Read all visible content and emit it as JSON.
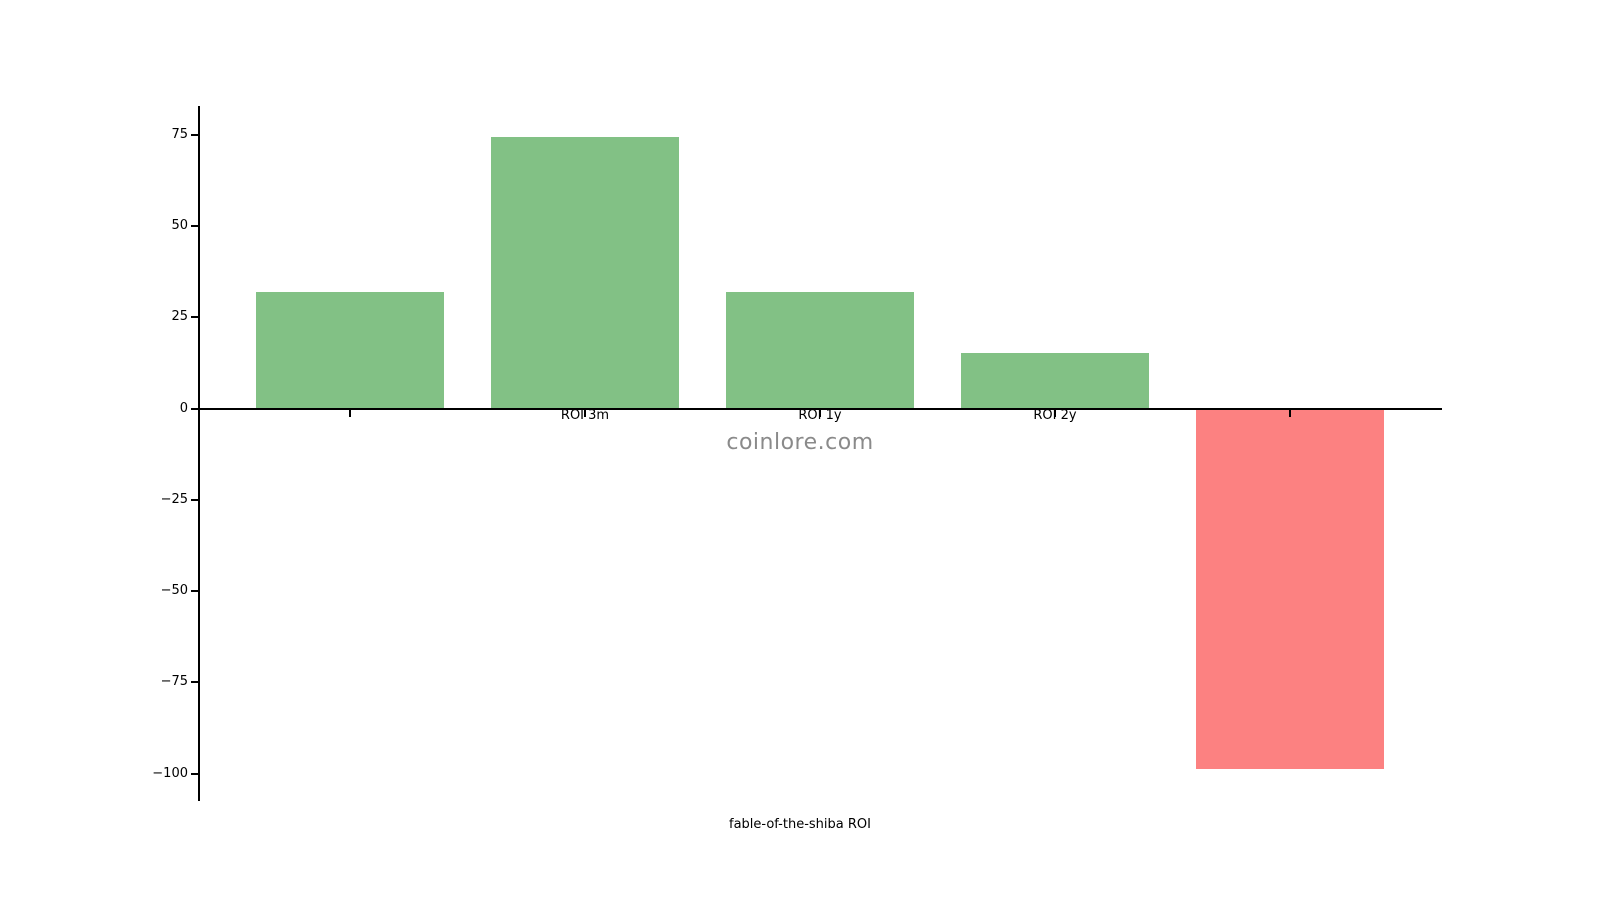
{
  "watermark": {
    "text": "coinlore.com",
    "color": "#8a8a8a"
  },
  "chart_data": {
    "type": "bar",
    "title": "fable-of-the-shiba ROI",
    "categories": [
      "",
      "ROI 3m",
      "ROI 1y",
      "ROI 2y",
      ""
    ],
    "values": [
      31.8,
      74.2,
      31.8,
      15.1,
      -98.8
    ],
    "series": [
      {
        "name": "fable-of-the-shiba ROI",
        "values": [
          31.8,
          74.2,
          31.8,
          15.1,
          -98.8
        ]
      }
    ],
    "xlabel": "",
    "ylabel": "",
    "ytick_values": [
      75,
      50,
      25,
      0,
      -25,
      -50,
      -75,
      -100
    ],
    "ytick_labels": [
      "75",
      "50",
      "25",
      "0",
      "−25",
      "−50",
      "−75",
      "−100"
    ],
    "ylim": [
      -107.5,
      82.9
    ],
    "grid": false,
    "legend_position": "none",
    "colors": {
      "positive_bar": "#82c185",
      "negative_bar": "#fc8181",
      "axis": "#000000",
      "tick_label": "#000000",
      "watermark": "#8a8a8a"
    }
  }
}
